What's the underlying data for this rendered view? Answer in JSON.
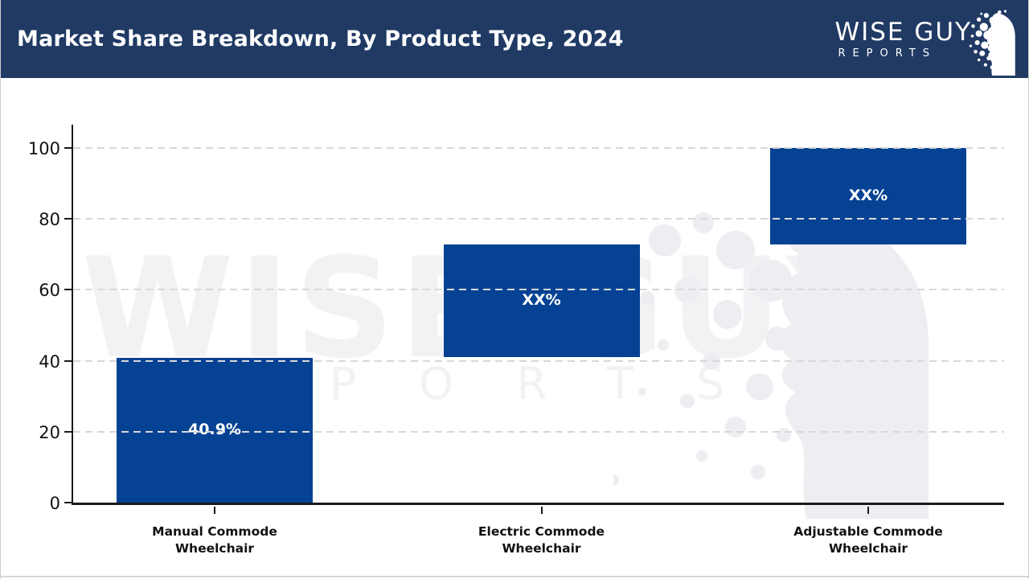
{
  "header": {
    "title": "Market Share Breakdown, By Product Type, 2024",
    "brand": {
      "name": "WISE GUY",
      "subtitle": "REPORTS"
    }
  },
  "watermark": {
    "wordmark": "WISE GUY",
    "subtitle": "REPORTS"
  },
  "chart_data": {
    "type": "bar",
    "subtype": "stacked-progression (each bar starts where the previous one ends)",
    "title": "Market Share Breakdown, By Product Type, 2024",
    "categories": [
      [
        "Manual Commode",
        "Wheelchair"
      ],
      [
        "Electric Commode",
        "Wheelchair"
      ],
      [
        "Adjustable Commode",
        "Wheelchair"
      ]
    ],
    "bars": [
      {
        "value_label": "40.9%",
        "start": 0,
        "end": 40.9
      },
      {
        "value_label": "XX%",
        "start": 41.0,
        "end": 72.8
      },
      {
        "value_label": "XX%",
        "start": 72.8,
        "end": 100
      }
    ],
    "ylabel": "",
    "xlabel": "",
    "ylim": [
      0,
      106
    ],
    "yticks": [
      0,
      20,
      40,
      60,
      80,
      100
    ],
    "grid": "horizontal-dashed",
    "legend": "none",
    "bar_color": "#064293",
    "bar_label_color": "#ffffff"
  },
  "colors": {
    "header_bg": "#203a64",
    "grid": "#d8d8d8",
    "axis": "#1a1a1a",
    "watermark": "#f2f2f5"
  }
}
